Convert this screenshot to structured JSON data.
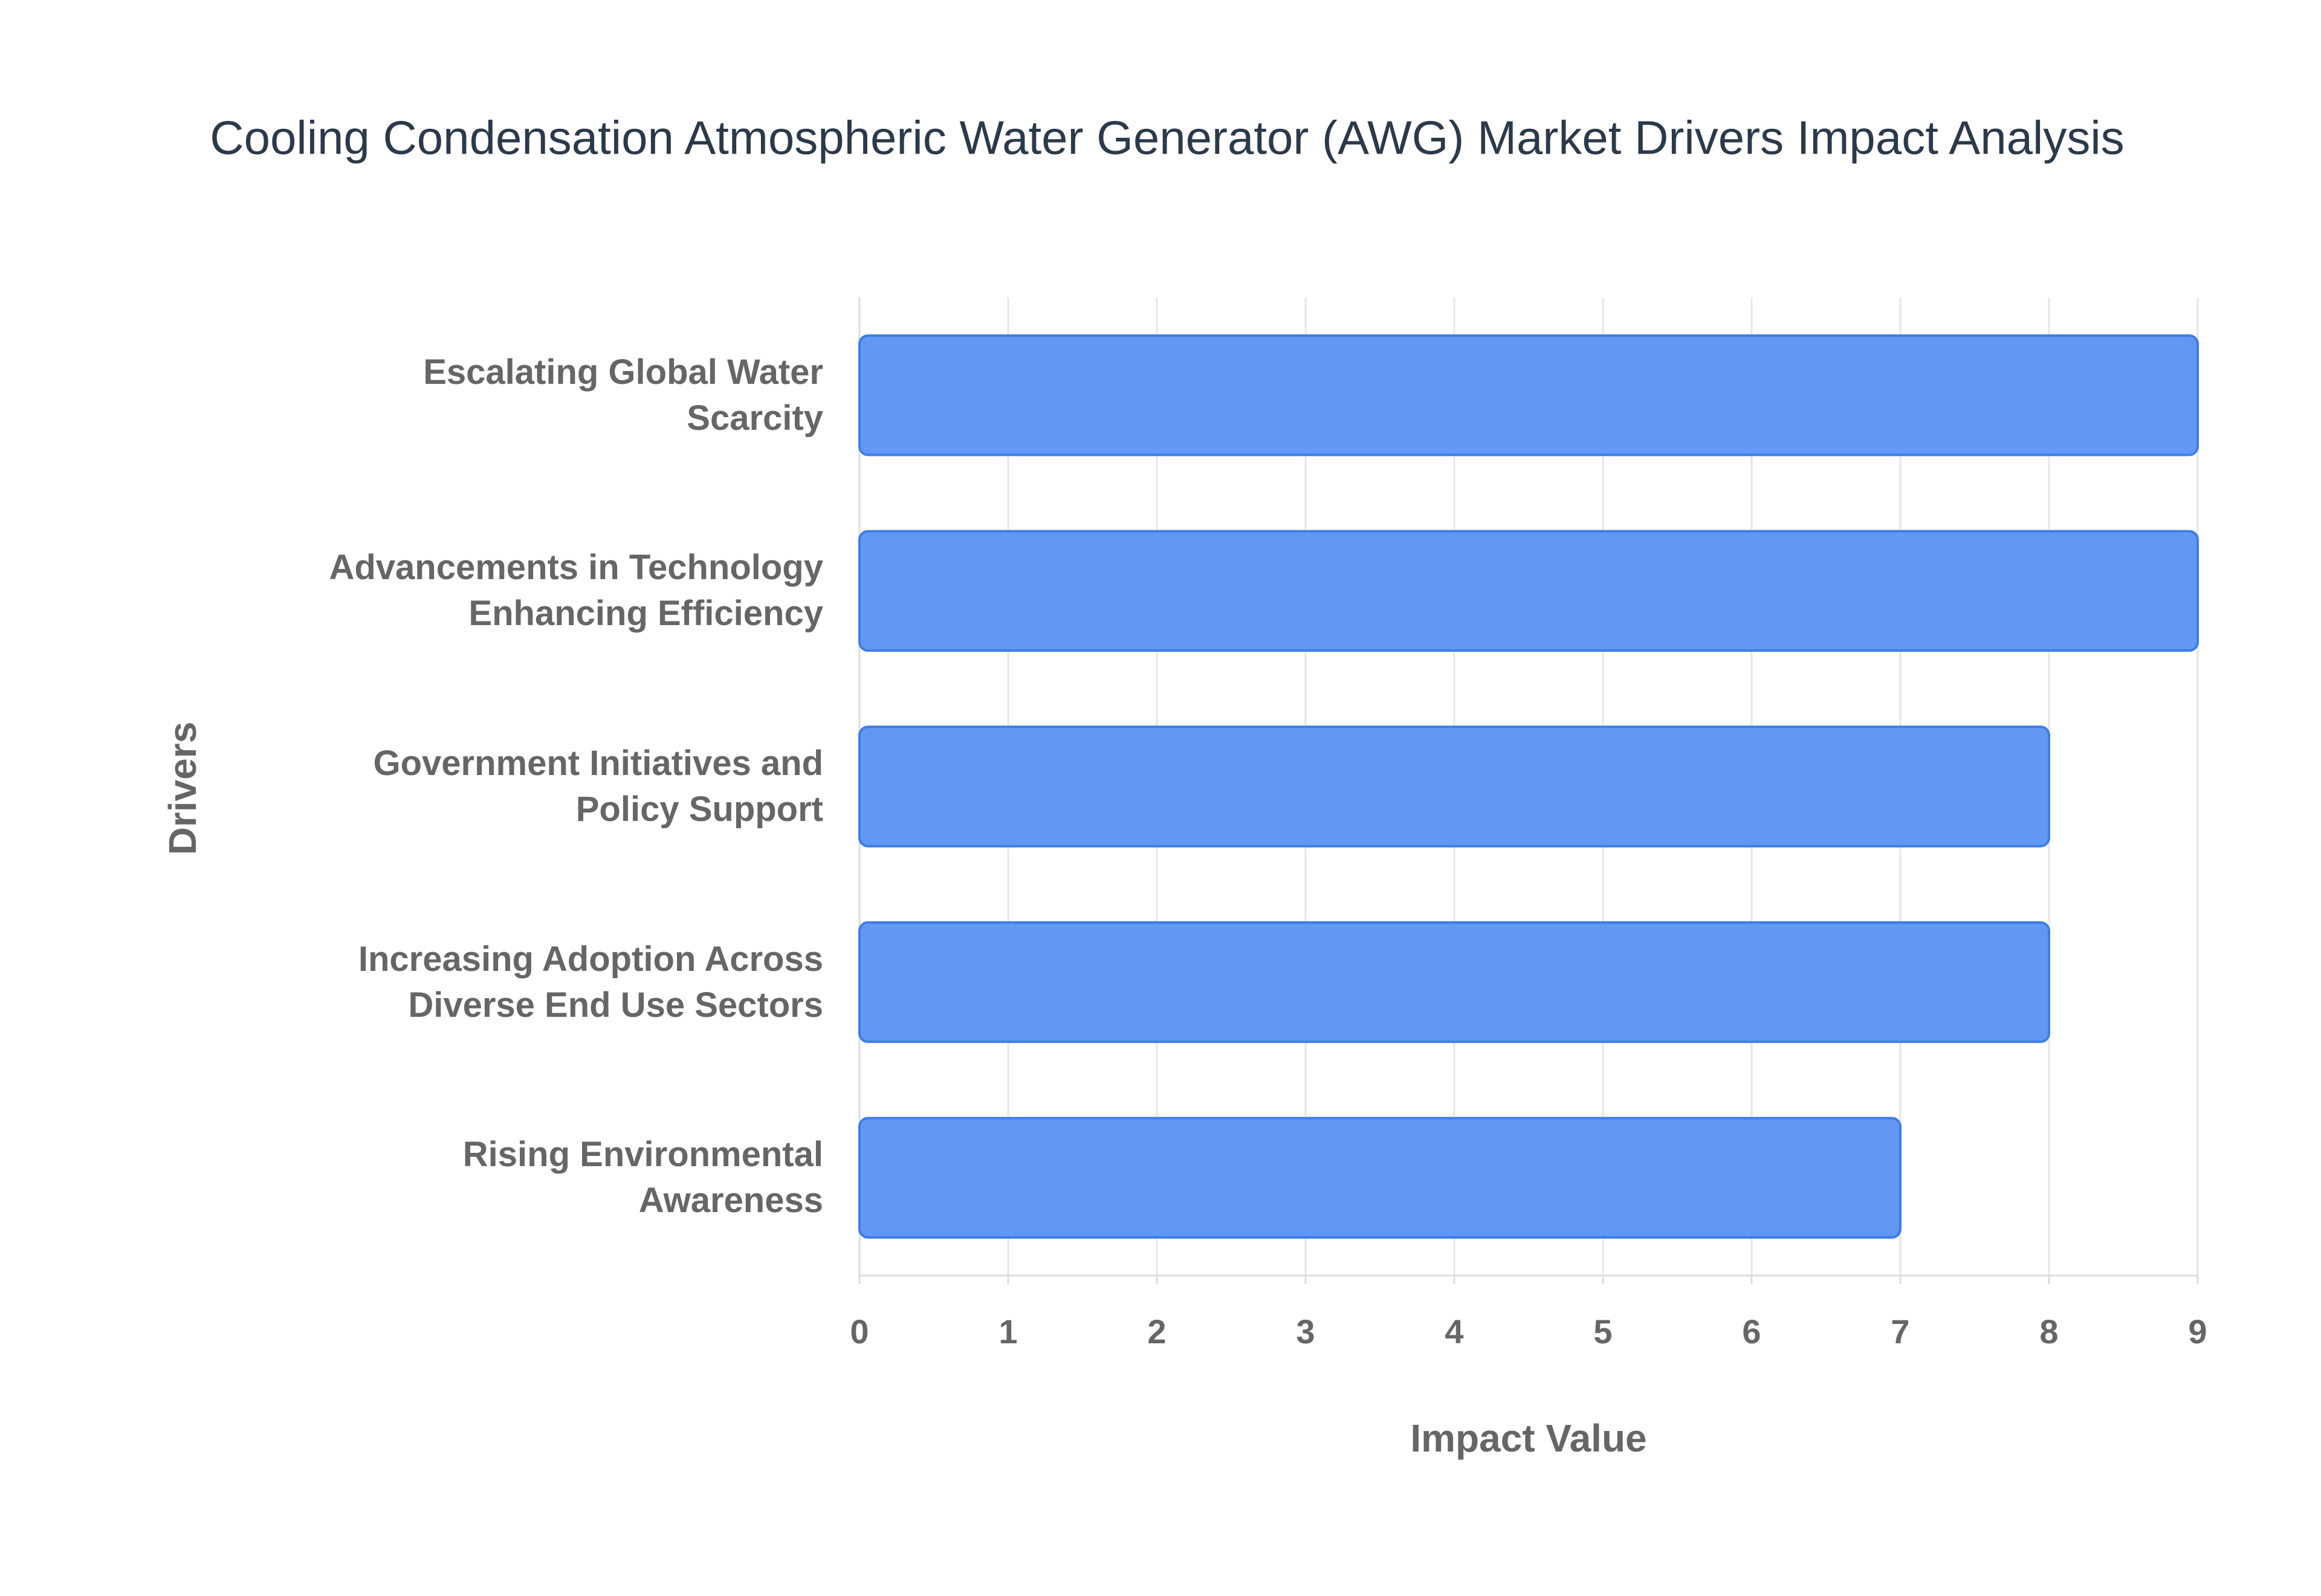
{
  "chart_data": {
    "type": "bar",
    "orientation": "horizontal",
    "title": "Cooling Condensation Atmospheric Water Generator (AWG) Market Drivers Impact Analysis",
    "x_label": "Impact Value",
    "y_label": "Drivers",
    "categories": [
      "Escalating Global Water Scarcity",
      "Advancements in Technology Enhancing Efficiency",
      "Government Initiatives and Policy Support",
      "Increasing Adoption Across Diverse End Use Sectors",
      "Rising Environmental Awareness"
    ],
    "values": [
      9,
      9,
      8,
      8,
      7
    ],
    "color": "#6298f4",
    "xlim": [
      0,
      9
    ],
    "xticks": [
      0,
      1,
      2,
      3,
      4,
      5,
      6,
      7,
      8,
      9
    ],
    "grid": true
  }
}
